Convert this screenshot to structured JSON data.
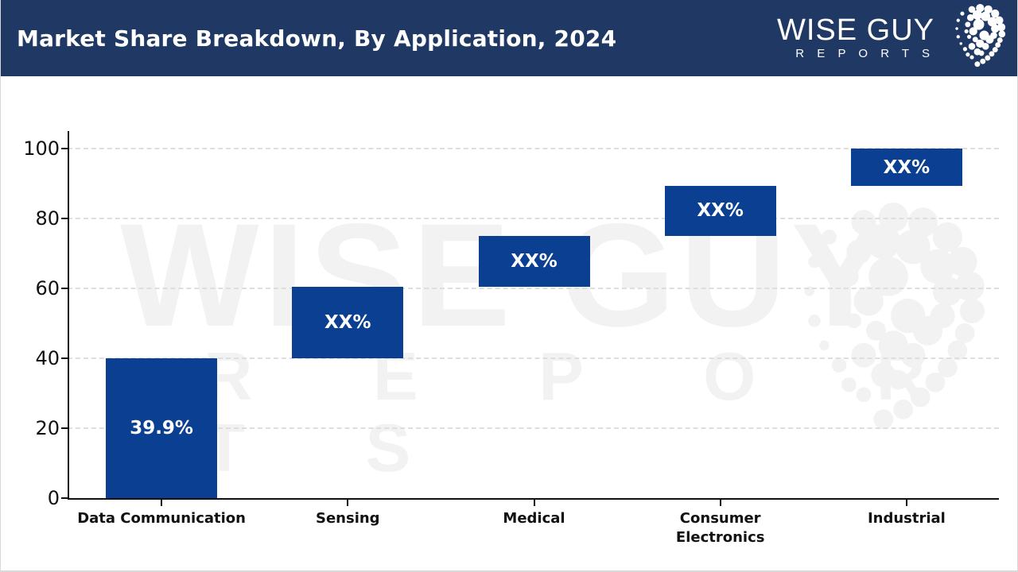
{
  "header": {
    "title": "Market Share Breakdown, By Application, 2024",
    "bg_color": "#1f3864",
    "logo": {
      "line1": "WISE GUY",
      "line2": "R E P O R T S"
    }
  },
  "watermark": {
    "line1": "WISE GUY",
    "line2": "R E P O R T S"
  },
  "chart_data": {
    "type": "bar",
    "subtype": "waterfall",
    "title": "Market Share Breakdown, By Application, 2024",
    "xlabel": "",
    "ylabel": "",
    "categories": [
      "Data Communication",
      "Sensing",
      "Medical",
      "Consumer\nElectronics",
      "Industrial"
    ],
    "segments": [
      {
        "category": "Data Communication",
        "start": 0,
        "end": 39.9,
        "label": "39.9%"
      },
      {
        "category": "Sensing",
        "start": 39.9,
        "end": 60.4,
        "label": "XX%"
      },
      {
        "category": "Medical",
        "start": 60.4,
        "end": 75.1,
        "label": "XX%"
      },
      {
        "category": "Consumer Electronics",
        "start": 75.1,
        "end": 89.3,
        "label": "XX%"
      },
      {
        "category": "Industrial",
        "start": 89.3,
        "end": 100,
        "label": "XX%"
      }
    ],
    "yticks": [
      0,
      20,
      40,
      60,
      80,
      100
    ],
    "ylim": [
      0,
      105
    ],
    "grid": "horizontal dashed",
    "legend": "none",
    "bar_color": "#0b3f92",
    "bar_label_color": "#ffffff",
    "grid_color": "#dedede",
    "axis_color": "#111111"
  }
}
